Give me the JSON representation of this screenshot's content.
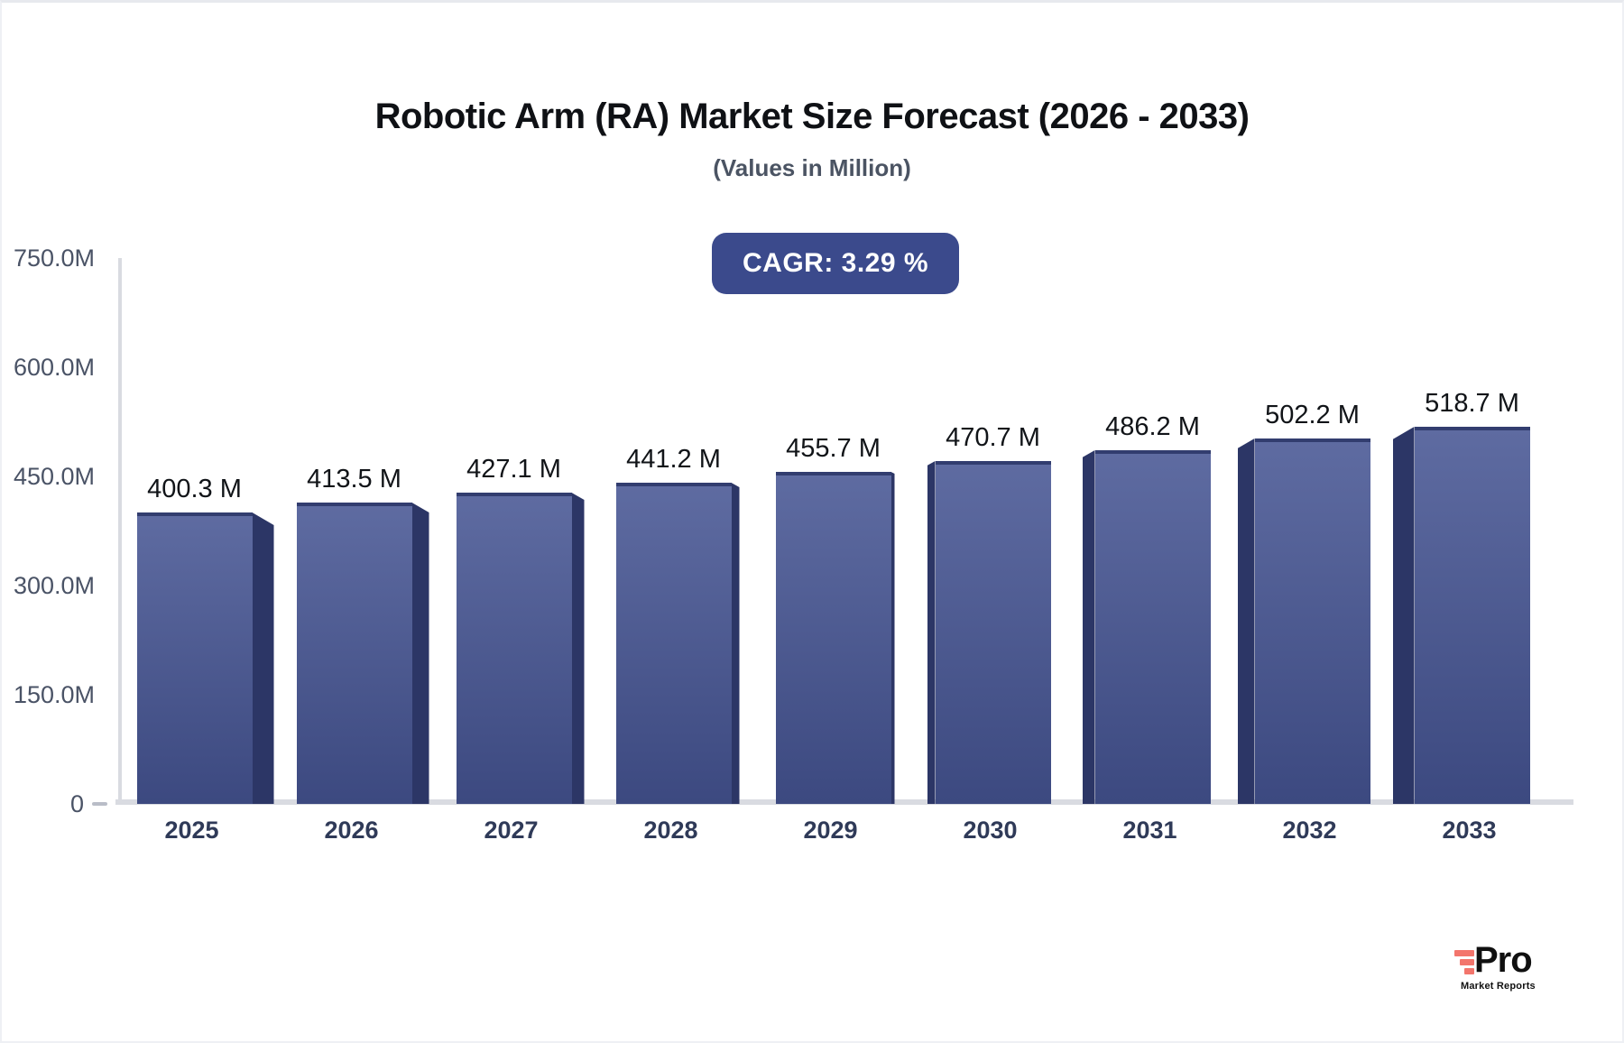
{
  "header": {
    "title": "Robotic Arm (RA) Market Size Forecast (2026 - 2033)",
    "subtitle": "(Values in Million)",
    "cagr_badge": "CAGR: 3.29 %"
  },
  "chart_data": {
    "type": "bar",
    "title": "Robotic Arm (RA) Market Size Forecast (2026 - 2033)",
    "subtitle": "(Values in Million)",
    "annotation": "CAGR: 3.29 %",
    "categories": [
      "2025",
      "2026",
      "2027",
      "2028",
      "2029",
      "2030",
      "2031",
      "2032",
      "2033"
    ],
    "values": [
      400.3,
      413.5,
      427.1,
      441.2,
      455.7,
      470.7,
      486.2,
      502.2,
      518.7
    ],
    "value_labels": [
      "400.3 M",
      "413.5 M",
      "427.1 M",
      "441.2 M",
      "455.7 M",
      "470.7 M",
      "486.2 M",
      "502.2 M",
      "518.7 M"
    ],
    "xlabel": "",
    "ylabel": "",
    "ylim": [
      0,
      750
    ],
    "grid": false,
    "legend": false,
    "y_ticks": [
      {
        "label": "750.0M",
        "value": 750,
        "dash": false
      },
      {
        "label": "600.0M",
        "value": 600,
        "dash": false
      },
      {
        "label": "450.0M",
        "value": 450,
        "dash": false
      },
      {
        "label": "300.0M",
        "value": 300,
        "dash": false
      },
      {
        "label": "150.0M",
        "value": 150,
        "dash": false
      },
      {
        "label": "0",
        "value": 0,
        "dash": true
      }
    ]
  },
  "logo": {
    "name": "Pro",
    "tagline": "Market Reports"
  },
  "colors": {
    "title_text": "#0f1115",
    "subtitle_text": "#4b5463",
    "badge_bg": "#3b4a8c",
    "bar_face_top": "#5e6ba1",
    "bar_face_bottom": "#3c4980",
    "bar_side": "#2c3666",
    "bar_top_edge": "#323d6f",
    "axis": "#d9dbe1",
    "tick_text": "#4a5366",
    "year_text": "#2f3a58",
    "value_text": "#111418",
    "logo_red": "#f3756c",
    "logo_text": "#101010"
  }
}
